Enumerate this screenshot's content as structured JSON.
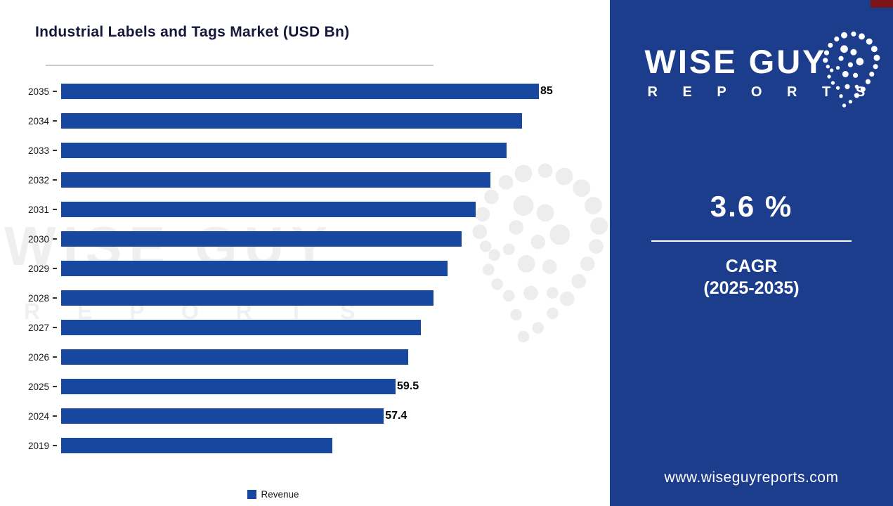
{
  "chart": {
    "title": "Industrial Labels and Tags Market (USD Bn)"
  },
  "chart_data": {
    "type": "bar",
    "orientation": "horizontal",
    "title": "Industrial Labels and Tags Market (USD Bn)",
    "xlabel": "",
    "ylabel": "",
    "xlim": [
      0,
      90
    ],
    "grid": false,
    "categories": [
      "2035",
      "2034",
      "2033",
      "2032",
      "2031",
      "2030",
      "2029",
      "2028",
      "2027",
      "2026",
      "2025",
      "2024",
      "2019"
    ],
    "values": [
      85,
      82,
      79.2,
      76.4,
      73.8,
      71.2,
      68.7,
      66.3,
      64.0,
      61.8,
      59.5,
      57.4,
      48.2
    ],
    "value_labels": {
      "2035": "85",
      "2025": "59.5",
      "2024": "57.4"
    },
    "legend": [
      "Revenue"
    ],
    "legend_position": "bottom",
    "bar_color": "#17479e"
  },
  "watermark": {
    "line1": "WISE GUY",
    "line2": "R E P O R T S"
  },
  "sidebar": {
    "background": "#1c3c8c",
    "accent_color": "#7a1416",
    "brand": {
      "line1": "WISE GUY",
      "line2": "R E P O R T S"
    },
    "cagr": {
      "value": "3.6 %",
      "label": "CAGR",
      "period": "(2025-2035)"
    },
    "website": "www.wiseguyreports.com"
  }
}
